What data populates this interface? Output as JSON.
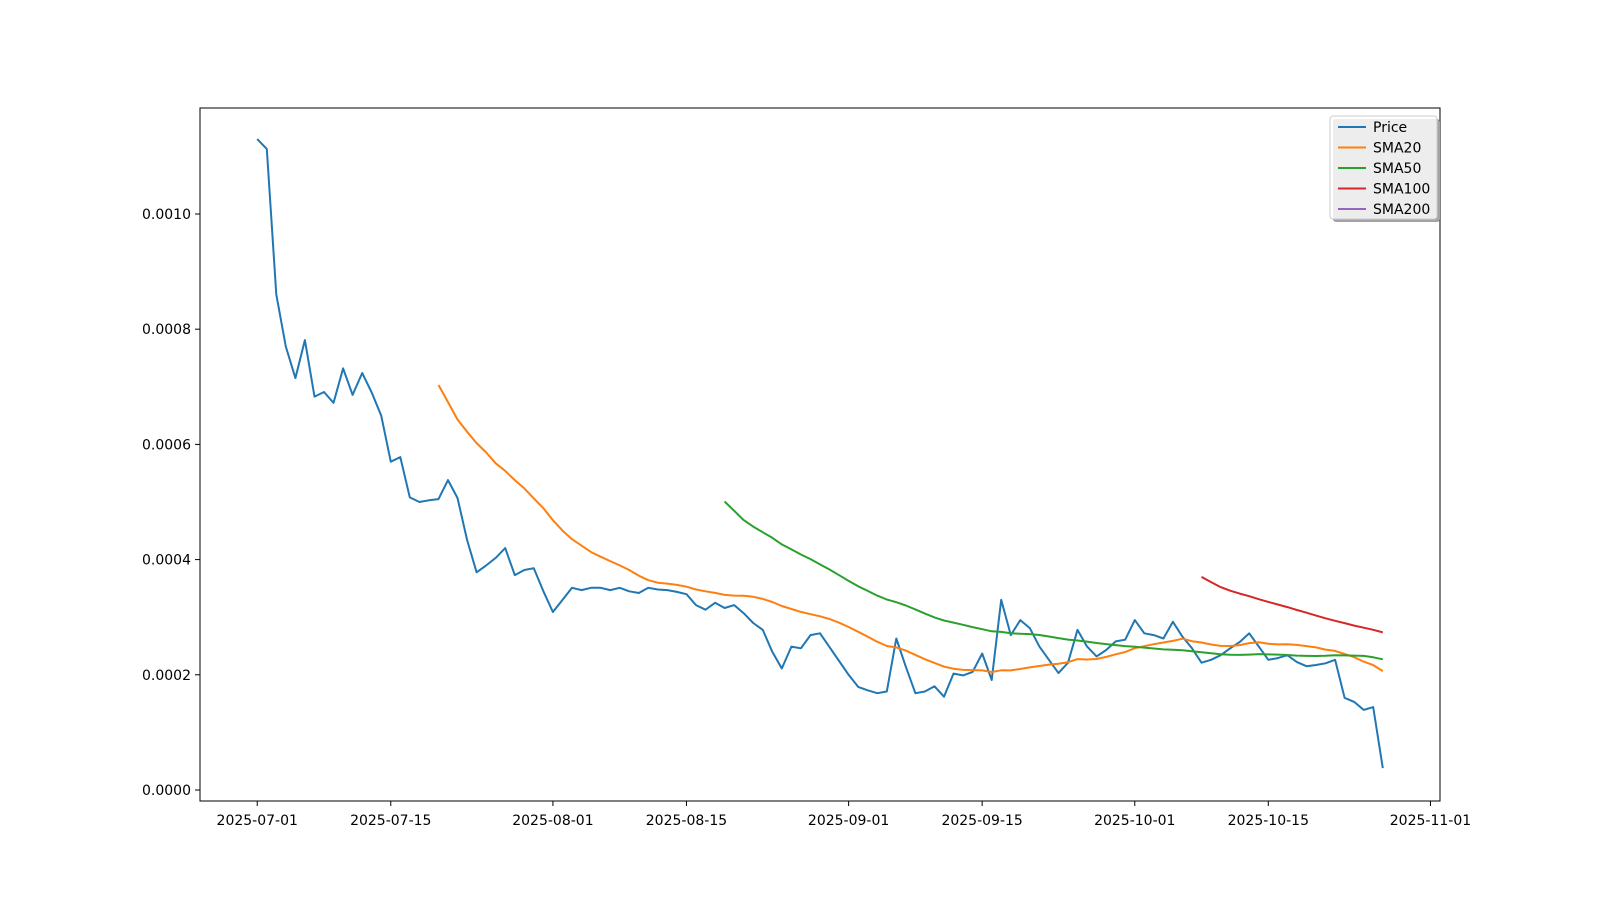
{
  "figure": {
    "background": "#ffffff",
    "plot_background": "#ffffff",
    "spine_color": "#000000",
    "tick_color": "#000000"
  },
  "chart_data": {
    "type": "line",
    "title": "",
    "xlabel": "",
    "ylabel": "",
    "grid": false,
    "x_axis_kind": "date",
    "xlim_dates": [
      "2025-06-25",
      "2025-11-02"
    ],
    "ylim": [
      -1.91e-05,
      0.001184
    ],
    "x_tick_labels": [
      "2025-07-01",
      "2025-07-15",
      "2025-08-01",
      "2025-08-15",
      "2025-09-01",
      "2025-09-15",
      "2025-10-01",
      "2025-10-15",
      "2025-11-01"
    ],
    "y_tick_values": [
      0.0,
      0.0002,
      0.0004,
      0.0006,
      0.0008,
      0.001
    ],
    "y_tick_labels": [
      "0.0000",
      "0.0002",
      "0.0004",
      "0.0006",
      "0.0008",
      "0.0010"
    ],
    "legend": {
      "position": "upper right",
      "shadow": true,
      "border_color": "#cccccc",
      "labels": [
        "Price",
        "SMA20",
        "SMA50",
        "SMA100",
        "SMA200"
      ]
    },
    "dates": [
      "2025-07-01",
      "2025-07-02",
      "2025-07-03",
      "2025-07-04",
      "2025-07-05",
      "2025-07-06",
      "2025-07-07",
      "2025-07-08",
      "2025-07-09",
      "2025-07-10",
      "2025-07-11",
      "2025-07-12",
      "2025-07-13",
      "2025-07-14",
      "2025-07-15",
      "2025-07-16",
      "2025-07-17",
      "2025-07-18",
      "2025-07-19",
      "2025-07-20",
      "2025-07-21",
      "2025-07-22",
      "2025-07-23",
      "2025-07-24",
      "2025-07-25",
      "2025-07-26",
      "2025-07-27",
      "2025-07-28",
      "2025-07-29",
      "2025-07-30",
      "2025-07-31",
      "2025-08-01",
      "2025-08-02",
      "2025-08-03",
      "2025-08-04",
      "2025-08-05",
      "2025-08-06",
      "2025-08-07",
      "2025-08-08",
      "2025-08-09",
      "2025-08-10",
      "2025-08-11",
      "2025-08-12",
      "2025-08-13",
      "2025-08-14",
      "2025-08-15",
      "2025-08-16",
      "2025-08-17",
      "2025-08-18",
      "2025-08-19",
      "2025-08-20",
      "2025-08-21",
      "2025-08-22",
      "2025-08-23",
      "2025-08-24",
      "2025-08-25",
      "2025-08-26",
      "2025-08-27",
      "2025-08-28",
      "2025-08-29",
      "2025-08-30",
      "2025-08-31",
      "2025-09-01",
      "2025-09-02",
      "2025-09-03",
      "2025-09-04",
      "2025-09-05",
      "2025-09-06",
      "2025-09-07",
      "2025-09-08",
      "2025-09-09",
      "2025-09-10",
      "2025-09-11",
      "2025-09-12",
      "2025-09-13",
      "2025-09-14",
      "2025-09-15",
      "2025-09-16",
      "2025-09-17",
      "2025-09-18",
      "2025-09-19",
      "2025-09-20",
      "2025-09-21",
      "2025-09-22",
      "2025-09-23",
      "2025-09-24",
      "2025-09-25",
      "2025-09-26",
      "2025-09-27",
      "2025-09-28",
      "2025-09-29",
      "2025-09-30",
      "2025-10-01",
      "2025-10-02",
      "2025-10-03",
      "2025-10-04",
      "2025-10-05",
      "2025-10-06",
      "2025-10-07",
      "2025-10-08",
      "2025-10-09",
      "2025-10-10",
      "2025-10-11",
      "2025-10-12",
      "2025-10-13",
      "2025-10-14",
      "2025-10-15",
      "2025-10-16",
      "2025-10-17",
      "2025-10-18",
      "2025-10-19",
      "2025-10-20",
      "2025-10-21",
      "2025-10-22",
      "2025-10-23",
      "2025-10-24",
      "2025-10-25",
      "2025-10-26",
      "2025-10-27"
    ],
    "series": [
      {
        "name": "Price",
        "color": "#1f77b4",
        "kind": "raw",
        "values": [
          0.00113,
          0.001113,
          0.00086,
          0.00077,
          0.000715,
          0.000781,
          0.000683,
          0.000691,
          0.000672,
          0.000732,
          0.000686,
          0.000724,
          0.00069,
          0.00065,
          0.00057,
          0.000578,
          0.000508,
          0.0005,
          0.000503,
          0.000505,
          0.000538,
          0.000507,
          0.000434,
          0.000378,
          0.00039,
          0.000403,
          0.00042,
          0.000373,
          0.000382,
          0.000385,
          0.000345,
          0.000309,
          0.00033,
          0.000351,
          0.000347,
          0.000351,
          0.000351,
          0.000347,
          0.000351,
          0.000345,
          0.000342,
          0.000351,
          0.000348,
          0.000347,
          0.000344,
          0.00034,
          0.000321,
          0.000313,
          0.000325,
          0.000316,
          0.000321,
          0.000307,
          0.00029,
          0.000278,
          0.00024,
          0.000211,
          0.000249,
          0.000246,
          0.000269,
          0.000272,
          0.000248,
          0.000224,
          0.0002,
          0.000179,
          0.000173,
          0.000168,
          0.000171,
          0.000263,
          0.000214,
          0.000168,
          0.000171,
          0.00018,
          0.000162,
          0.000202,
          0.000199,
          0.000205,
          0.000237,
          0.000191,
          0.00033,
          0.000269,
          0.000295,
          0.000281,
          0.000249,
          0.000226,
          0.000203,
          0.000221,
          0.000278,
          0.000249,
          0.000232,
          0.000243,
          0.000258,
          0.000261,
          0.000295,
          0.000272,
          0.000269,
          0.000263,
          0.000292,
          0.000266,
          0.000246,
          0.000221,
          0.000226,
          0.000234,
          0.000246,
          0.000257,
          0.000272,
          0.000249,
          0.000226,
          0.000229,
          0.000234,
          0.000222,
          0.000215,
          0.000217,
          0.00022,
          0.000226,
          0.00016,
          0.000153,
          0.000139,
          0.000144,
          3.8e-05
        ]
      },
      {
        "name": "SMA20",
        "color": "#ff7f0e",
        "kind": "sma",
        "window": 20,
        "source": "Price"
      },
      {
        "name": "SMA50",
        "color": "#2ca02c",
        "kind": "sma",
        "window": 50,
        "source": "Price"
      },
      {
        "name": "SMA100",
        "color": "#d62728",
        "kind": "sma",
        "window": 100,
        "source": "Price"
      },
      {
        "name": "SMA200",
        "color": "#9467bd",
        "kind": "sma",
        "window": 200,
        "source": "Price"
      }
    ]
  }
}
